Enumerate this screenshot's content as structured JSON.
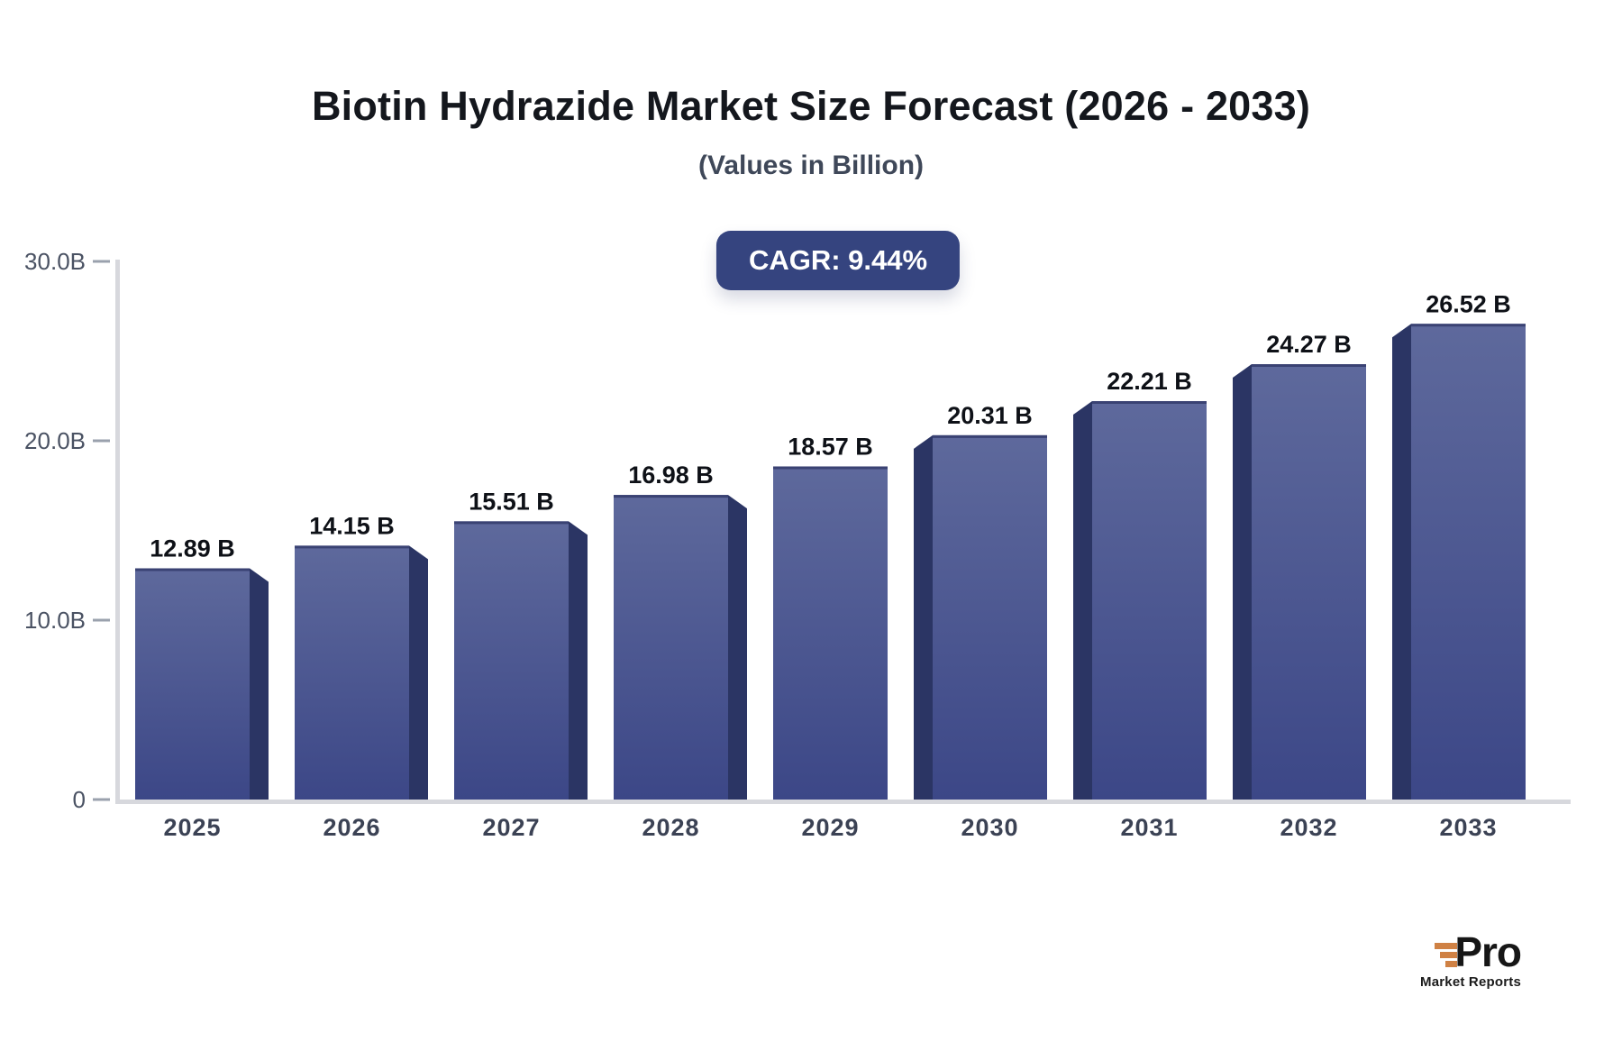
{
  "header": {
    "title": "Biotin Hydrazide Market Size Forecast (2026 - 2033)",
    "subtitle": "(Values in Billion)",
    "cagr_label": "CAGR: 9.44%"
  },
  "chart_data": {
    "type": "bar",
    "title": "Biotin Hydrazide Market Size Forecast (2026 - 2033)",
    "subtitle": "(Values in Billion)",
    "annotation": "CAGR: 9.44%",
    "categories": [
      "2025",
      "2026",
      "2027",
      "2028",
      "2029",
      "2030",
      "2031",
      "2032",
      "2033"
    ],
    "values": [
      12.89,
      14.15,
      15.51,
      16.98,
      18.57,
      20.31,
      22.21,
      24.27,
      26.52
    ],
    "value_labels": [
      "12.89 B",
      "14.15 B",
      "15.51 B",
      "16.98 B",
      "18.57 B",
      "20.31 B",
      "22.21 B",
      "24.27 B",
      "26.52 B"
    ],
    "xlabel": "",
    "ylabel": "",
    "ylim": [
      0,
      30
    ],
    "yticks": [
      {
        "value": 0,
        "label": "0"
      },
      {
        "value": 10,
        "label": "10.0B"
      },
      {
        "value": 20,
        "label": "20.0B"
      },
      {
        "value": 30,
        "label": "30.0B"
      }
    ],
    "grid": false,
    "legend": false,
    "style": "3d-extruded-bars-center-perspective"
  },
  "colors": {
    "bar_front_top": "#5e699c",
    "bar_front_bottom": "#3c4787",
    "bar_side": "#2b3564",
    "bar_top_edge": "#3a4273",
    "axis_line": "#d7d8dd",
    "tick": "#9aa1ad",
    "tick_label": "#4a5263",
    "category_label": "#3b4254",
    "value_label": "#0e1117",
    "badge_bg": "#35447f",
    "badge_text": "#ffffff",
    "logo_orange": "#cf8144"
  },
  "logo": {
    "brand": "Pro",
    "tagline": "Market Reports"
  }
}
